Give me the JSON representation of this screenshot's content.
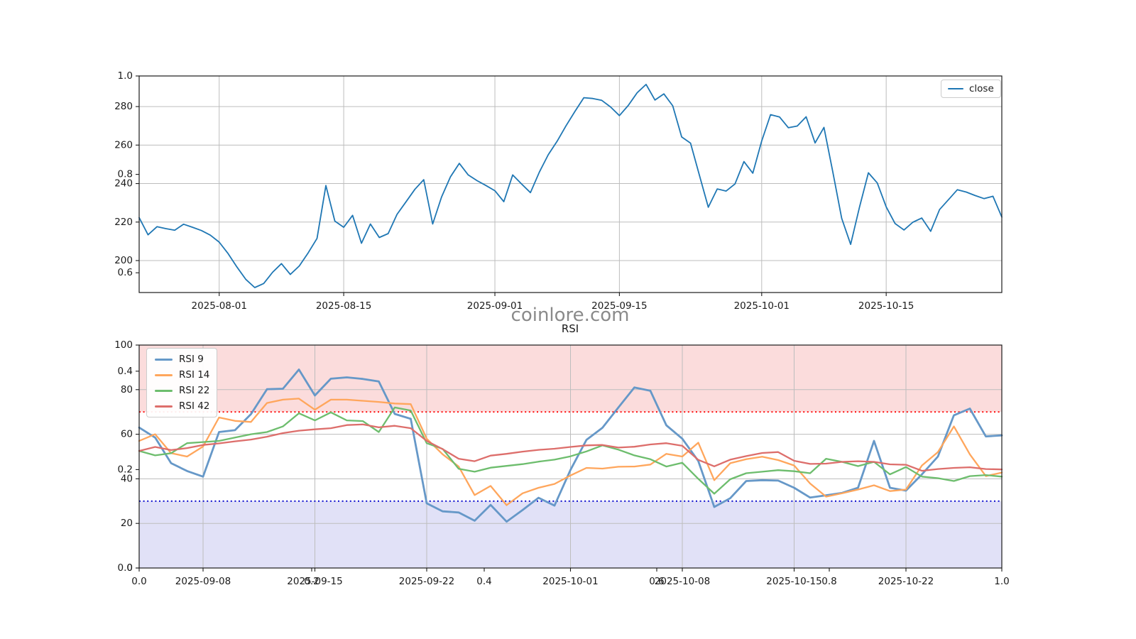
{
  "watermark": "coinlore.com",
  "overlay_axis": {
    "y_tick_labels": [
      "1.0",
      "0.8",
      "0.6",
      "0.4",
      "0.2",
      "0.0"
    ],
    "x_tick_labels": [
      "0.0",
      "0.2",
      "0.4",
      "0.6",
      "0.8",
      "1.0"
    ]
  },
  "colors": {
    "grid": "#bdbdbd",
    "spine": "#1a1a1a",
    "text": "#1a1a1a",
    "watermark_gray": "#8a8a8a"
  },
  "chart_data": [
    {
      "type": "line",
      "title": "",
      "xlabel": "",
      "ylabel": "",
      "x_start": "2025-07-23",
      "x_end": "2025-10-28",
      "x_tick_labels": [
        "2025-08-01",
        "2025-08-15",
        "2025-09-01",
        "2025-09-15",
        "2025-10-01",
        "2025-10-15"
      ],
      "x_tick_day_index": [
        9,
        23,
        40,
        54,
        70,
        84
      ],
      "y_ticks": [
        200,
        220,
        240,
        260,
        280
      ],
      "ylim": [
        183.4,
        295.9
      ],
      "grid": true,
      "legend_position": "upper right",
      "series": [
        {
          "name": "close",
          "color": "#1f77b4",
          "width": 1.8,
          "values": [
            222.3,
            213.4,
            217.6,
            216.6,
            215.8,
            218.9,
            217.3,
            215.6,
            213.2,
            209.6,
            203.6,
            196.6,
            190.2,
            186.0,
            188.1,
            193.9,
            198.4,
            192.8,
            197.2,
            204.0,
            211.5,
            239.0,
            220.5,
            217.3,
            223.5,
            209.0,
            219.0,
            212.0,
            214.0,
            224.0,
            230.5,
            237.0,
            242.0,
            219.0,
            233.0,
            243.5,
            250.5,
            244.5,
            241.5,
            239.0,
            236.3,
            230.6,
            244.5,
            239.8,
            235.3,
            246.0,
            255.0,
            262.0,
            270.0,
            277.5,
            284.6,
            284.2,
            283.3,
            279.8,
            275.3,
            280.6,
            287.2,
            291.5,
            283.4,
            286.6,
            280.4,
            264.2,
            261.0,
            244.3,
            227.7,
            237.2,
            236.1,
            239.8,
            251.4,
            245.4,
            262.1,
            275.8,
            274.6,
            269.0,
            269.9,
            274.7,
            261.1,
            269.2,
            246.0,
            221.9,
            208.4,
            227.8,
            245.6,
            240.3,
            227.9,
            219.2,
            215.9,
            219.9,
            222.1,
            215.2,
            226.5,
            231.6,
            236.8,
            235.6,
            233.8,
            232.2,
            233.4,
            222.6
          ]
        }
      ]
    },
    {
      "type": "line",
      "title": "RSI",
      "xlabel": "",
      "ylabel": "",
      "x_start": "2025-09-04",
      "x_end": "2025-10-28",
      "x_tick_labels": [
        "2025-09-08",
        "2025-09-15",
        "2025-09-22",
        "2025-10-01",
        "2025-10-08",
        "2025-10-15",
        "2025-10-22"
      ],
      "x_tick_day_index": [
        4,
        11,
        18,
        27,
        34,
        41,
        48
      ],
      "y_ticks": [
        0,
        20,
        40,
        60,
        80,
        100
      ],
      "ylim": [
        0,
        100
      ],
      "grid": true,
      "overbought_level": 70,
      "oversold_level": 30,
      "overbought_band_color": "#fbdcdc",
      "oversold_band_color": "#e1e1f7",
      "overbought_line_color": "#ff0000",
      "oversold_line_color": "#0000cc",
      "legend_position": "upper left",
      "series": [
        {
          "name": "RSI 9",
          "color": "#6698c8",
          "width": 2.8,
          "values": [
            63,
            58.5,
            47,
            43.5,
            41,
            61,
            61.8,
            69,
            80.2,
            80.4,
            89,
            77.4,
            84.9,
            85.5,
            84.8,
            83.7,
            69.1,
            66.9,
            29,
            25.4,
            24.9,
            21.2,
            28.3,
            20.8,
            26,
            31.5,
            28,
            44,
            57.5,
            62.9,
            72,
            81,
            79.5,
            64,
            58,
            48,
            27.4,
            31.3,
            39,
            39.4,
            39.2,
            36,
            31.6,
            32.6,
            33.7,
            36,
            57,
            36,
            34.7,
            42,
            50,
            68.5,
            71.5,
            59,
            59.5
          ]
        },
        {
          "name": "RSI 14",
          "color": "#ffa65c",
          "width": 2.3,
          "values": [
            57,
            60,
            51.5,
            50,
            54.5,
            67.5,
            66,
            65.5,
            74,
            75.5,
            76,
            71,
            75.5,
            75.5,
            75,
            74.5,
            73.8,
            73.5,
            58,
            51,
            45.5,
            32.7,
            36.8,
            28.2,
            33.5,
            36,
            37.7,
            41.5,
            44.9,
            44.6,
            45.4,
            45.5,
            46.4,
            51.2,
            50,
            56.2,
            39.4,
            47,
            48.8,
            49.9,
            48.4,
            46,
            37.9,
            32,
            33.5,
            35.2,
            37.1,
            34.5,
            35.2,
            46,
            52,
            63.5,
            51,
            41.2,
            42.8
          ]
        },
        {
          "name": "RSI 22",
          "color": "#6dbd6d",
          "width": 2.3,
          "values": [
            52.5,
            50.5,
            51.5,
            56,
            56.5,
            57,
            58.5,
            60,
            61,
            63.5,
            69.4,
            66.2,
            69.8,
            66.2,
            65.9,
            61,
            72,
            70.6,
            56,
            53.4,
            44.5,
            43.2,
            45,
            45.8,
            46.6,
            47.7,
            48.6,
            50.1,
            52.3,
            55,
            53.1,
            50.5,
            48.8,
            45.5,
            47.2,
            40,
            33.3,
            39.8,
            42.5,
            43.2,
            43.9,
            43.4,
            42.5,
            49,
            47.6,
            45.7,
            47.6,
            42,
            45.3,
            41,
            40.3,
            39,
            41.2,
            41.7,
            41
          ]
        },
        {
          "name": "RSI 42",
          "color": "#dd6e6b",
          "width": 2.3,
          "values": [
            52.5,
            54.3,
            52.9,
            53.8,
            55.2,
            55.9,
            56.8,
            57.6,
            58.9,
            60.5,
            61.6,
            62.2,
            62.7,
            64.1,
            64.4,
            63.1,
            63.8,
            62.7,
            57,
            53.3,
            49,
            47.9,
            50.4,
            51.2,
            52.2,
            53,
            53.5,
            54.3,
            55,
            55.2,
            54,
            54.4,
            55.4,
            56,
            54.8,
            48.5,
            45.6,
            48.6,
            50.2,
            51.6,
            52,
            48.1,
            46.7,
            46.8,
            47.6,
            47.9,
            47.6,
            46.5,
            46.3,
            43.6,
            44.4,
            44.9,
            45.2,
            44.4,
            44.2
          ]
        }
      ]
    }
  ]
}
